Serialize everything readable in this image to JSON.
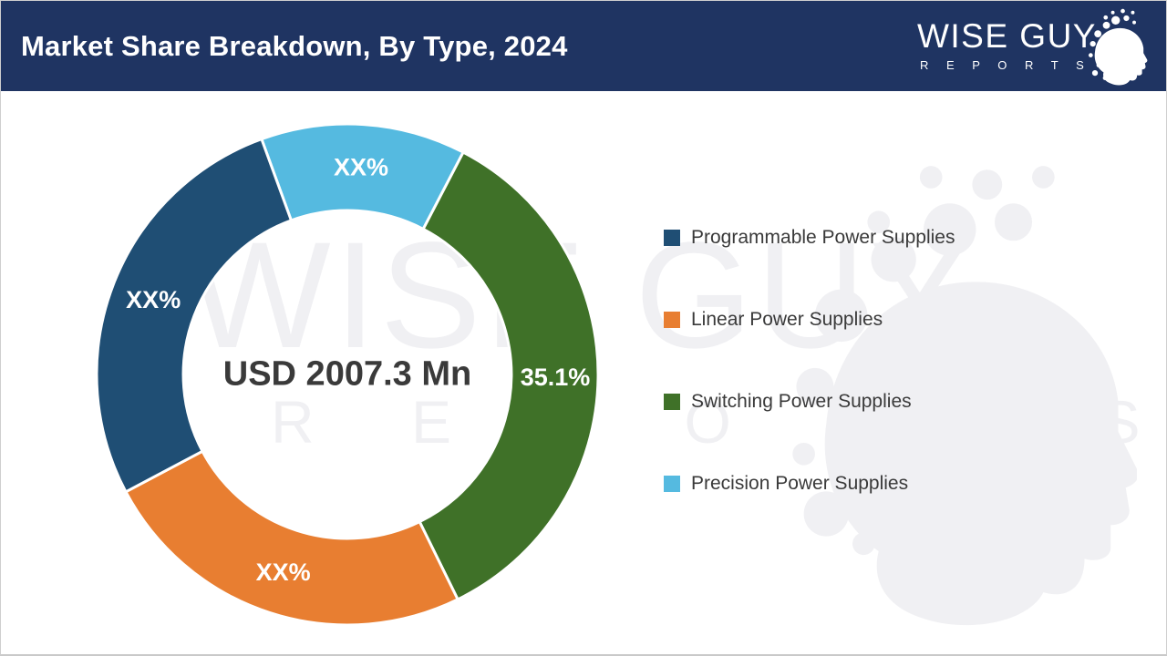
{
  "header": {
    "title": "Market Share Breakdown, By Type, 2024",
    "logo": {
      "line1": "WISE GUY",
      "line2": "R E P O R T S"
    }
  },
  "watermark": {
    "line1": "WISE GUY",
    "line2": "R E P O R T S"
  },
  "theme": {
    "header_bg": "#1F3462",
    "text_dark": "#3A3A3A",
    "watermark_gray": "#F0F0F3",
    "separator_white": "#FFFFFF"
  },
  "chart_data": {
    "type": "pie",
    "subtype": "donut",
    "title": "Market Share Breakdown, By Type, 2024",
    "center_label": "USD 2007.3 Mn",
    "start_angle_deg": -20,
    "direction": "clockwise",
    "legend_position": "right",
    "segments": [
      {
        "name": "Precision Power Supplies",
        "display_label": "XX%",
        "value_pct": 13.2,
        "color": "#55BAE0"
      },
      {
        "name": "Switching Power Supplies",
        "display_label": "35.1%",
        "value_pct": 35.1,
        "color": "#3F7128"
      },
      {
        "name": "Linear Power Supplies",
        "display_label": "XX%",
        "value_pct": 24.5,
        "color": "#E87E31"
      },
      {
        "name": "Programmable Power Supplies",
        "display_label": "XX%",
        "value_pct": 27.2,
        "color": "#1F4E74"
      }
    ],
    "legend": [
      {
        "label": "Programmable Power Supplies",
        "color": "#1F4E74"
      },
      {
        "label": "Linear Power Supplies",
        "color": "#E87E31"
      },
      {
        "label": "Switching Power Supplies",
        "color": "#3F7128"
      },
      {
        "label": "Precision Power Supplies",
        "color": "#55BAE0"
      }
    ]
  }
}
